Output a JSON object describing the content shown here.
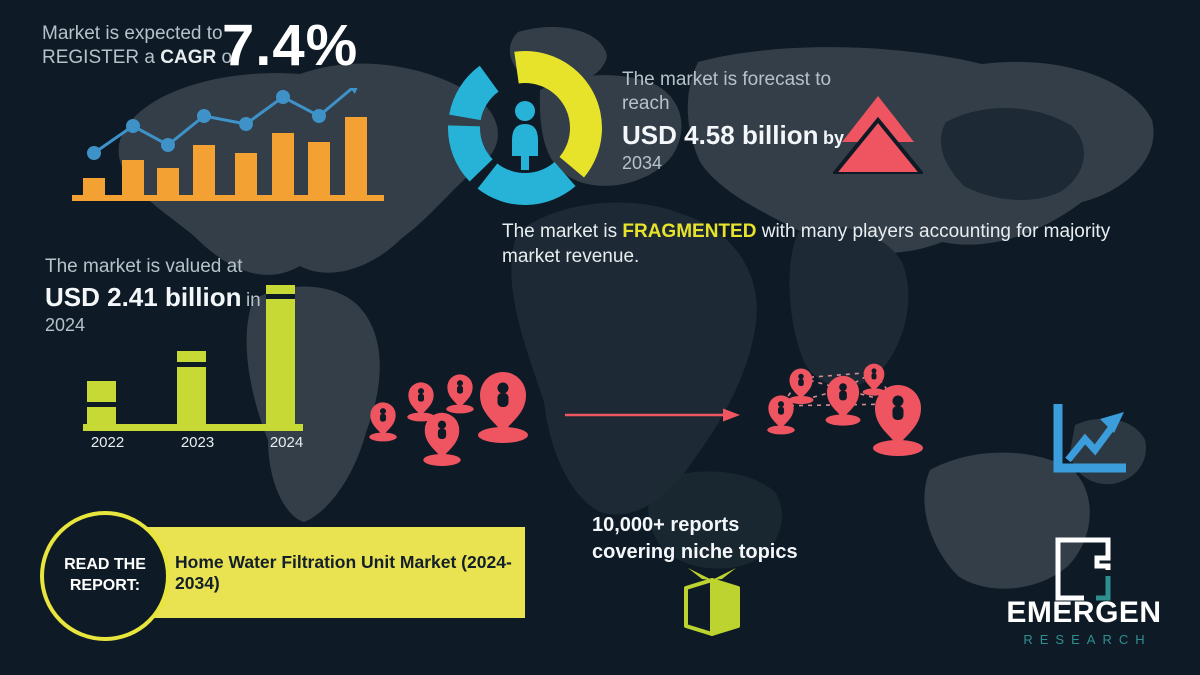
{
  "colors": {
    "background": "#0e1b26",
    "map_light": "#333e48",
    "map_dark": "#1d2a35",
    "orange": "#f2a132",
    "line_blue": "#3e92c8",
    "donut_yellow": "#e7e32b",
    "donut_cyan": "#26b3d7",
    "coral_red": "#ef5560",
    "bar_green": "#c6d934",
    "book_green": "#bdd32f",
    "banner_yellow": "#e9e251",
    "teal": "#2f8f8f",
    "growth_icon_blue": "#3b9ddb"
  },
  "cagr": {
    "line1": "Market is expected to",
    "line2_pre": "REGISTER a ",
    "line2_bold": "CAGR",
    "line2_post": " of",
    "value": "7.4%"
  },
  "forecast": {
    "line1": "The market is forecast to",
    "line2": "reach",
    "value": "USD 4.58 billion",
    "by": "by",
    "year": "2034"
  },
  "fragmented": {
    "pre": "The market is ",
    "highlight": "FRAGMENTED",
    "post": " with many players accounting for majority market revenue."
  },
  "valued": {
    "line1": "The market is valued at",
    "value": "USD 2.41 billion",
    "in": "in",
    "year": "2024"
  },
  "read_report": {
    "circle_label": "READ THE REPORT:",
    "banner": "Home Water Filtration Unit Market (2024-2034)"
  },
  "reports": {
    "line1": "10,000+ reports",
    "line2": "covering niche topics"
  },
  "logo": {
    "name": "EMERGEN",
    "sub": "RESEARCH"
  },
  "chart_data": [
    {
      "id": "cagr_trend",
      "type": "bar",
      "title": "Market expected to register a CAGR of 7.4% (stylized growth bars with trend line)",
      "categories": [
        "",
        "",
        "",
        "",
        "",
        "",
        "",
        ""
      ],
      "values": [
        17,
        35,
        27,
        50,
        42,
        62,
        53,
        78
      ],
      "line_values": [
        30,
        57,
        38,
        67,
        59,
        86,
        67,
        98
      ],
      "bar_color": "#f2a132",
      "line_color": "#3e92c8",
      "annotation": "CAGR 7.4%"
    },
    {
      "id": "market_value",
      "type": "bar",
      "title": "Market value by year (2024 = USD 2.41 billion)",
      "categories": [
        "2022",
        "2023",
        "2024"
      ],
      "values": [
        43,
        73,
        139
      ],
      "bar_color": "#c6d934",
      "annotation": "USD 2.41 billion in 2024"
    },
    {
      "id": "market_share_donut",
      "type": "pie",
      "title": "Fragmented market share (stylized donut)",
      "segments": [
        {
          "name": "yellow-segment",
          "color": "#e7e32b",
          "start_deg": -8,
          "end_deg": 130
        },
        {
          "name": "cyan-segment-1",
          "color": "#26b3d7",
          "start_deg": 139,
          "end_deg": 218
        },
        {
          "name": "cyan-segment-2",
          "color": "#26b3d7",
          "start_deg": 226,
          "end_deg": 272
        },
        {
          "name": "cyan-segment-3",
          "color": "#26b3d7",
          "start_deg": 280,
          "end_deg": 324
        }
      ]
    }
  ]
}
